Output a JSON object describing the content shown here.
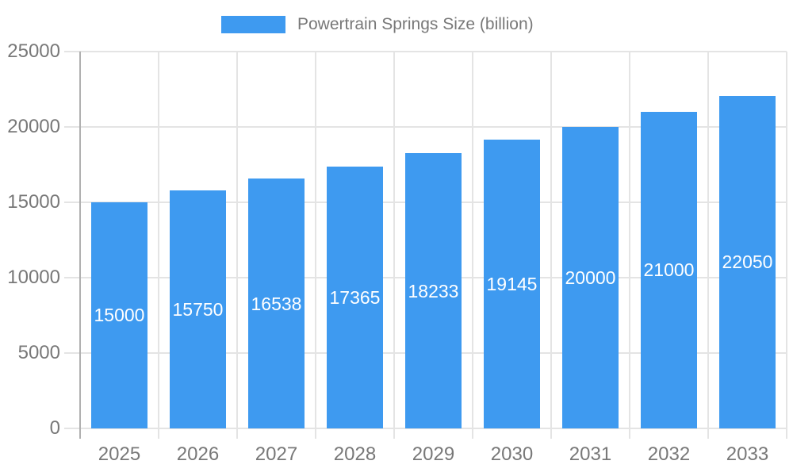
{
  "chart_data": {
    "type": "bar",
    "title": "Powertrain Springs Size (billion)",
    "categories": [
      "2025",
      "2026",
      "2027",
      "2028",
      "2029",
      "2030",
      "2031",
      "2032",
      "2033"
    ],
    "values": [
      15000,
      15750,
      16538,
      17365,
      18233,
      19145,
      20000,
      21000,
      22050
    ],
    "xlabel": "",
    "ylabel": "",
    "ylim": [
      0,
      25000
    ],
    "yticks": [
      0,
      5000,
      10000,
      15000,
      20000,
      25000
    ],
    "grid": true,
    "legend_position": "top",
    "colors": {
      "bar": "#3E9AF0",
      "grid": "#e4e4e4",
      "axis": "#b0b0b0",
      "text": "#787878",
      "bar_label": "#ffffff",
      "background": "#ffffff"
    }
  }
}
